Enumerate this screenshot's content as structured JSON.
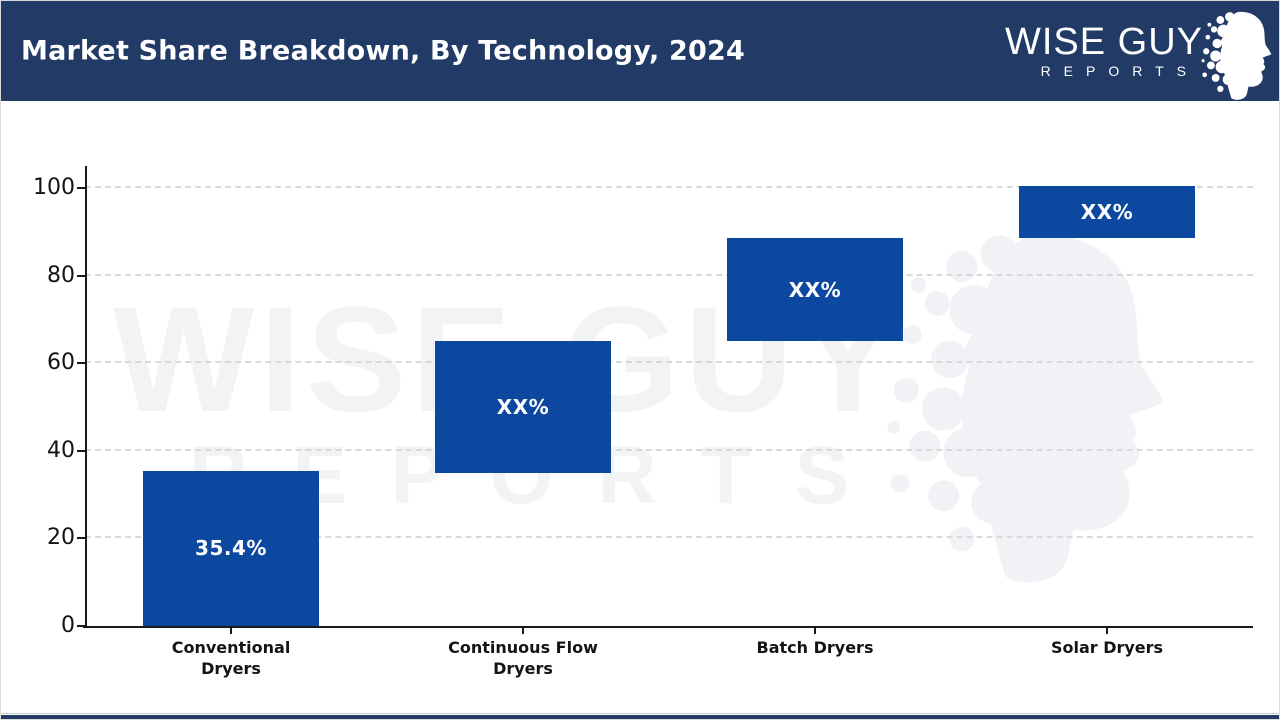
{
  "header": {
    "title": "Market Share Breakdown, By Technology, 2024",
    "bg_color": "#213a66",
    "logo": {
      "name": "WISE GUY",
      "sub": "REPORTS"
    }
  },
  "watermark": {
    "line1": "WISE GUY",
    "line2": "REPORTS"
  },
  "chart_data": {
    "type": "bar",
    "subtype": "floating-waterfall",
    "title": "Market Share Breakdown, By Technology, 2024",
    "categories": [
      [
        "Conventional",
        "Dryers"
      ],
      [
        "Continuous Flow",
        "Dryers"
      ],
      [
        "Batch Dryers"
      ],
      [
        "Solar Dryers"
      ]
    ],
    "bars": [
      {
        "name": "conventional-dryers",
        "start": 0,
        "end": 35.4,
        "label": "35.4%"
      },
      {
        "name": "continuous-flow-dryers",
        "start": 35,
        "end": 65,
        "label": "XX%"
      },
      {
        "name": "batch-dryers",
        "start": 65,
        "end": 88.5,
        "label": "XX%"
      },
      {
        "name": "solar-dryers",
        "start": 88.5,
        "end": 100.5,
        "label": "XX%"
      }
    ],
    "bar_color": "#0c48a0",
    "bar_label_color": "#ffffff",
    "yticks": [
      0,
      20,
      40,
      60,
      80,
      100
    ],
    "ylim": [
      0,
      105
    ],
    "xlabel": "",
    "ylabel": "",
    "grid": {
      "horizontal": true,
      "style": "dashed",
      "color": "#d9d9d9"
    },
    "axis_color": "#1a1a1a",
    "legend": null
  },
  "footer": {
    "bar_color": "#213a66"
  }
}
